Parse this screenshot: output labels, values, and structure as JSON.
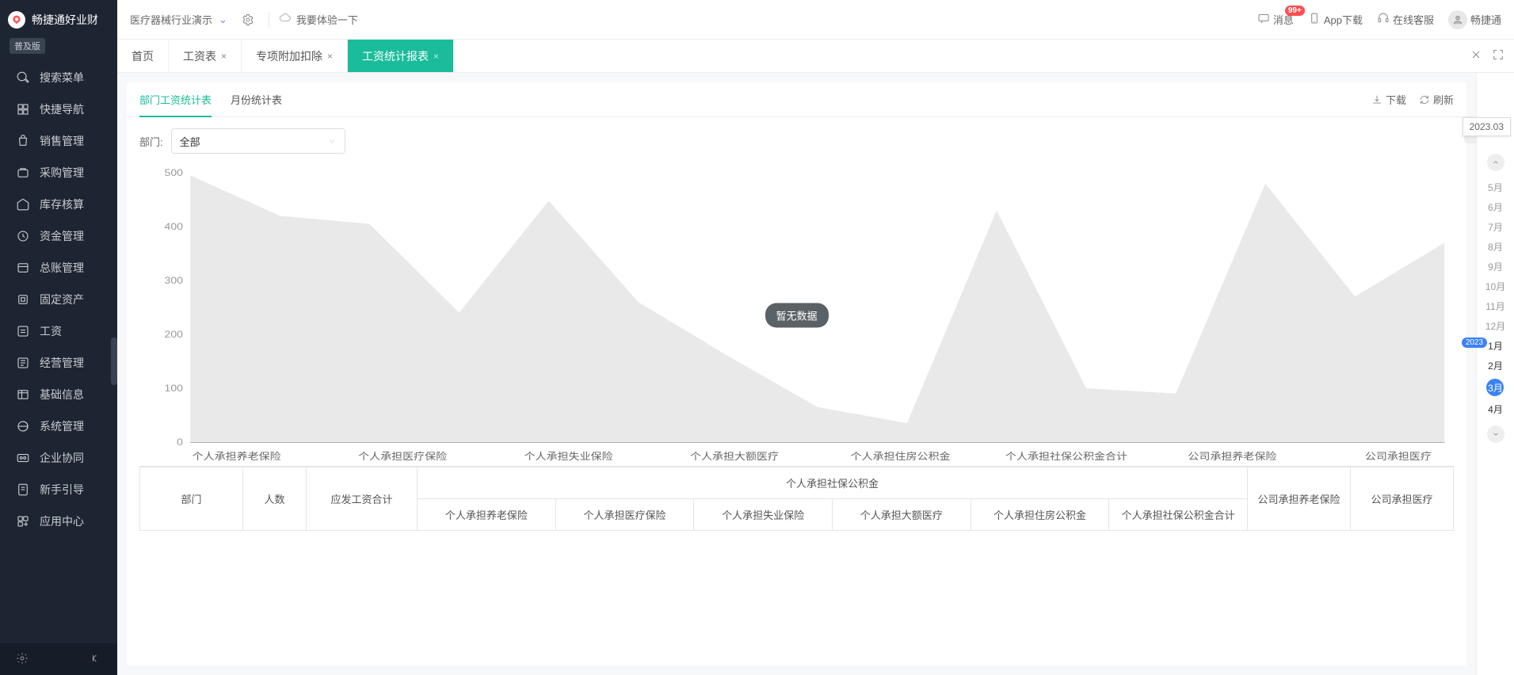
{
  "app": {
    "title": "畅捷通好业财",
    "edition": "普及版"
  },
  "sidebar": {
    "items": [
      {
        "label": "搜索菜单"
      },
      {
        "label": "快捷导航"
      },
      {
        "label": "销售管理"
      },
      {
        "label": "采购管理"
      },
      {
        "label": "库存核算"
      },
      {
        "label": "资金管理"
      },
      {
        "label": "总账管理"
      },
      {
        "label": "固定资产"
      },
      {
        "label": "工资"
      },
      {
        "label": "经营管理"
      },
      {
        "label": "基础信息"
      },
      {
        "label": "系统管理"
      },
      {
        "label": "企业协同"
      },
      {
        "label": "新手引导"
      },
      {
        "label": "应用中心"
      }
    ]
  },
  "topbar": {
    "org": "医疗器械行业演示",
    "try_label": "我要体验一下",
    "msg_label": "消息",
    "msg_badge": "99+",
    "app_label": "App下载",
    "service_label": "在线客服",
    "user": "畅捷通"
  },
  "tabs": [
    {
      "label": "首页",
      "closable": false
    },
    {
      "label": "工资表",
      "closable": true
    },
    {
      "label": "专项附加扣除",
      "closable": true
    },
    {
      "label": "工资统计报表",
      "closable": true,
      "active": true
    }
  ],
  "sub_tabs": [
    {
      "label": "部门工资统计表",
      "active": true
    },
    {
      "label": "月份统计表"
    }
  ],
  "actions": {
    "download": "下载",
    "refresh": "刷新"
  },
  "filter": {
    "label": "部门:",
    "value": "全部"
  },
  "chart": {
    "type": "area",
    "ylim": [
      0,
      500
    ],
    "ytick_step": 100,
    "yticks": [
      0,
      100,
      200,
      300,
      400,
      500
    ],
    "area_color": "#e9e9e9",
    "axis_color": "#666666",
    "background": "#ffffff",
    "tooltip": "暂无数据",
    "categories": [
      "个人承担养老保险",
      "个人承担医疗保险",
      "个人承担失业保险",
      "个人承担大额医疗",
      "个人承担住房公积金",
      "个人承担社保公积金合计",
      "公司承担养老保险",
      "公司承担医疗"
    ],
    "values_left_anchor": 495,
    "series": [
      495,
      420,
      405,
      240,
      448,
      260,
      160,
      65,
      35,
      430,
      100,
      90,
      480,
      270,
      370
    ]
  },
  "table": {
    "group_header": "个人承担社保公积金",
    "cols": [
      "部门",
      "人数",
      "应发工资合计"
    ],
    "sub_cols": [
      "个人承担养老保险",
      "个人承担医疗保险",
      "个人承担失业保险",
      "个人承担大额医疗",
      "个人承担住房公积金",
      "个人承担社保公积金合计",
      "公司承担养老保险",
      "公司承担医疗"
    ]
  },
  "timeline": {
    "current": "2023.03",
    "year_badge": "2023",
    "months_gray": [
      "5月",
      "6月",
      "7月",
      "8月",
      "9月",
      "10月",
      "11月",
      "12月"
    ],
    "months_dark": [
      "1月",
      "2月",
      "3月",
      "4月"
    ],
    "active": "3月"
  }
}
